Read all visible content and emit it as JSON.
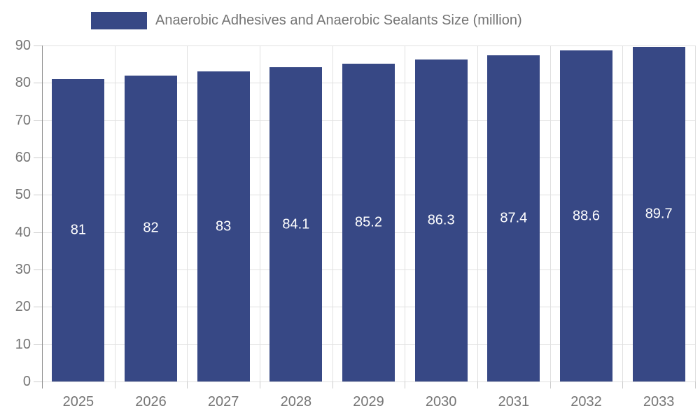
{
  "legend": {
    "label": "Anaerobic Adhesives and Anaerobic Sealants Size (million)"
  },
  "chart_data": {
    "type": "bar",
    "title": "Anaerobic Adhesives and Anaerobic Sealants Size (million)",
    "categories": [
      "2025",
      "2026",
      "2027",
      "2028",
      "2029",
      "2030",
      "2031",
      "2032",
      "2033"
    ],
    "values": [
      81,
      82,
      83,
      84.1,
      85.2,
      86.3,
      87.4,
      88.6,
      89.7
    ],
    "value_labels": [
      "81",
      "82",
      "83",
      "84.1",
      "85.2",
      "86.3",
      "87.4",
      "88.6",
      "89.7"
    ],
    "xlabel": "",
    "ylabel": "",
    "ylim": [
      0,
      90
    ],
    "y_ticks": [
      0,
      10,
      20,
      30,
      40,
      50,
      60,
      70,
      80,
      90
    ],
    "grid": true,
    "legend_position": "top",
    "value_label_position": "middle"
  },
  "colors": {
    "bar": "#374885",
    "grid": "#e0e0e0",
    "axis_line": "#8c8c8c",
    "tick": "#cccccc",
    "text": "#757575",
    "value_label": "#ffffff",
    "background": "#ffffff"
  }
}
